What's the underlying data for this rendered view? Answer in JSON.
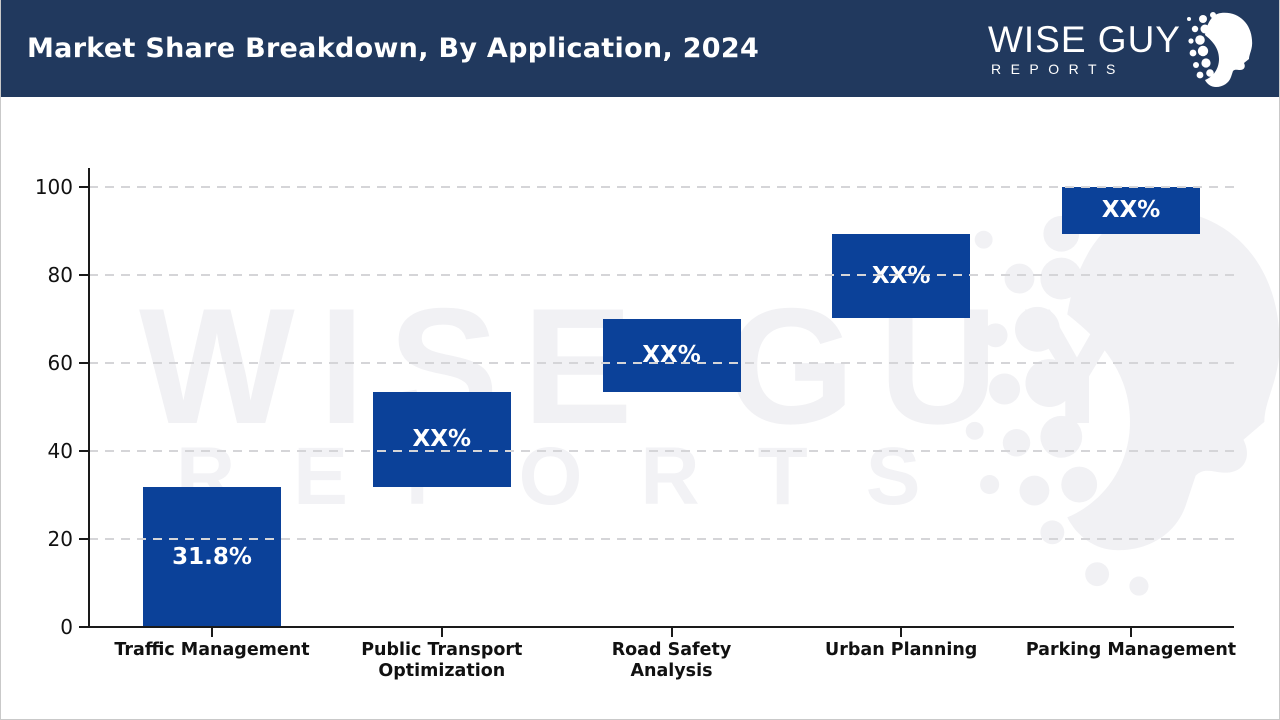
{
  "header": {
    "title": "Market Share Breakdown, By Application, 2024",
    "logo": {
      "wordmark": "WISE GUY",
      "reports": "REPORTS"
    }
  },
  "watermark": {
    "line1": "WISE GUY",
    "line2": "REPORTS"
  },
  "colors": {
    "header_background": "#21395e",
    "bar_blue": "#0b4199",
    "axis_black": "#1a1a1a",
    "grid_gray": "#d5d5d8",
    "watermark_gray": "#f1f1f4",
    "page_border": "#c9c9c9"
  },
  "chart_data": {
    "type": "bar",
    "subtype": "waterfall",
    "title": "Market Share Breakdown, By Application, 2024",
    "xlabel": "",
    "ylabel": "",
    "ylim": [
      0,
      104
    ],
    "yticks": [
      0,
      20,
      40,
      60,
      80,
      100
    ],
    "grid": true,
    "legend": "none",
    "bar_color": "#0b4199",
    "label_color": "#ffffff",
    "categories": [
      "Traffic Management",
      "Public Transport Optimization",
      "Road Safety Analysis",
      "Urban Planning",
      "Parking Management"
    ],
    "category_label_lines": [
      [
        "Traffic Management"
      ],
      [
        "Public Transport",
        "Optimization"
      ],
      [
        "Road Safety",
        "Analysis"
      ],
      [
        "Urban Planning"
      ],
      [
        "Parking Management"
      ]
    ],
    "segments": [
      {
        "category": "Traffic Management",
        "start": 0,
        "end": 31.8,
        "value": 31.8,
        "label": "31.8%"
      },
      {
        "category": "Public Transport Optimization",
        "start": 31.8,
        "end": 53.2,
        "value": 21.4,
        "label": "XX%"
      },
      {
        "category": "Road Safety Analysis",
        "start": 53.2,
        "end": 70.0,
        "value": 16.8,
        "label": "XX%"
      },
      {
        "category": "Urban Planning",
        "start": 70.0,
        "end": 89.3,
        "value": 19.3,
        "label": "XX%"
      },
      {
        "category": "Parking Management",
        "start": 89.3,
        "end": 100.0,
        "value": 10.7,
        "label": "XX%"
      }
    ]
  }
}
